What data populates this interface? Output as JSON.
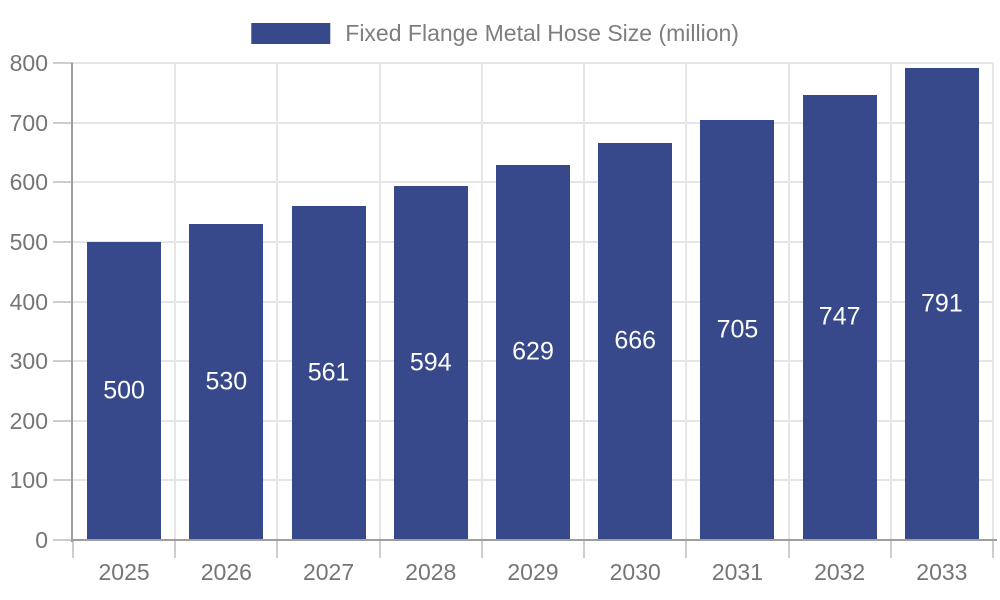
{
  "legend": {
    "label": "Fixed Flange Metal Hose Size (million)"
  },
  "chart_data": {
    "type": "bar",
    "title": "",
    "series_name": "Fixed Flange Metal Hose Size (million)",
    "legend_entries": [
      "Fixed Flange Metal Hose Size (million)"
    ],
    "legend_position": "top-center",
    "categories": [
      "2025",
      "2026",
      "2027",
      "2028",
      "2029",
      "2030",
      "2031",
      "2032",
      "2033"
    ],
    "values": [
      500,
      530,
      561,
      594,
      629,
      666,
      705,
      747,
      791
    ],
    "xlabel": "",
    "ylabel": "",
    "ylim": [
      0,
      800
    ],
    "yticks": [
      0,
      100,
      200,
      300,
      400,
      500,
      600,
      700,
      800
    ],
    "grid": true,
    "value_labels_position": "inside-center",
    "colors": {
      "bar": "#37498a",
      "grid": "#e5e5e5",
      "tick": "#cdcdcd",
      "axis": "#9e9e9e",
      "tick_label": "#757575",
      "value_label": "#ffffff",
      "legend_text": "#7e7e7e",
      "background": "#ffffff"
    }
  }
}
